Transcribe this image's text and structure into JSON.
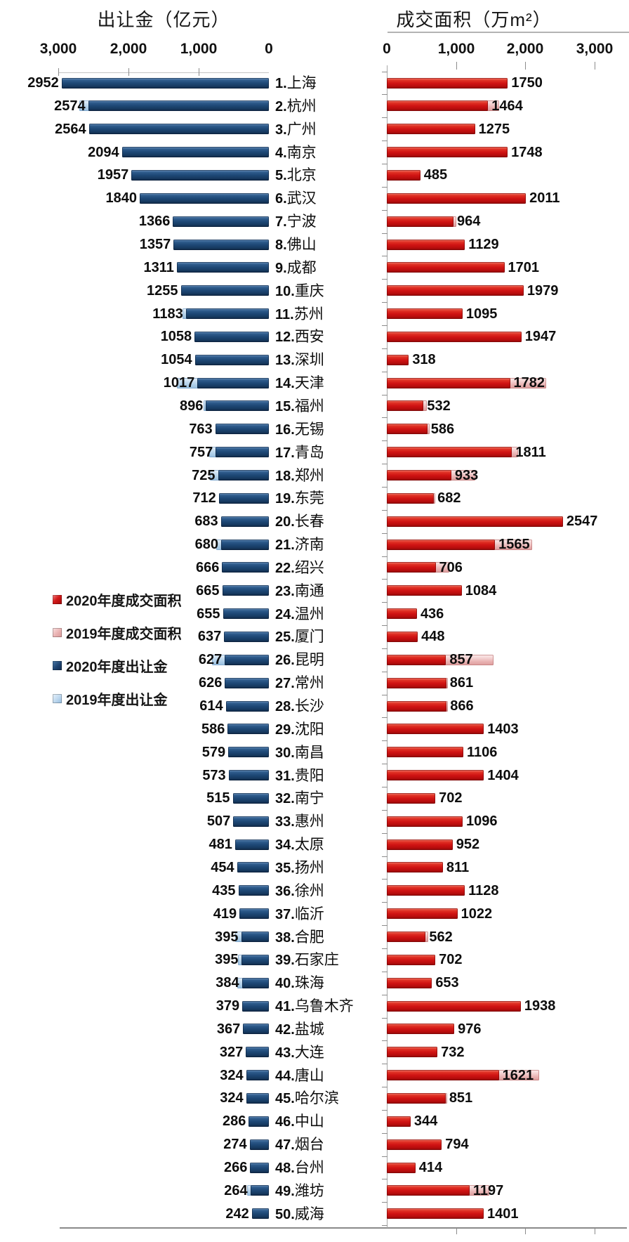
{
  "left_chart": {
    "title": "出让金（亿元）",
    "tick_labels": [
      "3,000",
      "2,000",
      "1,000",
      "0"
    ],
    "axis_reversed": true
  },
  "right_chart": {
    "title": "成交面积（万m²）",
    "tick_labels": [
      "0",
      "1,000",
      "2,000",
      "3,000"
    ]
  },
  "legend": [
    {
      "label": "2020年度成交面积",
      "color": "#d11414"
    },
    {
      "label": "2019年度成交面积",
      "color": "#e9b3b3"
    },
    {
      "label": "2020年度出让金",
      "color": "#1e4876"
    },
    {
      "label": "2019年度出让金",
      "color": "#bdd7ee"
    }
  ],
  "chart_data": {
    "type": "bar",
    "orientation": "horizontal-diverging",
    "categories": [
      "1.上海",
      "2.杭州",
      "3.广州",
      "4.南京",
      "5.北京",
      "6.武汉",
      "7.宁波",
      "8.佛山",
      "9.成都",
      "10.重庆",
      "11.苏州",
      "12.西安",
      "13.深圳",
      "14.天津",
      "15.福州",
      "16.无锡",
      "17.青岛",
      "18.郑州",
      "19.东莞",
      "20.长春",
      "21.济南",
      "22.绍兴",
      "23.南通",
      "24.温州",
      "25.厦门",
      "26.昆明",
      "27.常州",
      "28.长沙",
      "29.沈阳",
      "30.南昌",
      "31.贵阳",
      "32.南宁",
      "33.惠州",
      "34.太原",
      "35.扬州",
      "36.徐州",
      "37.临沂",
      "38.合肥",
      "39.石家庄",
      "40.珠海",
      "41.乌鲁木齐",
      "42.盐城",
      "43.大连",
      "44.唐山",
      "45.哈尔滨",
      "46.中山",
      "47.烟台",
      "48.台州",
      "49.潍坊",
      "50.威海"
    ],
    "left_axis": {
      "title": "出让金（亿元）",
      "range": [
        0,
        3000
      ],
      "ticks": [
        3000,
        2000,
        1000,
        0
      ],
      "reversed": true
    },
    "right_axis": {
      "title": "成交面积（万m²）",
      "range": [
        0,
        3000
      ],
      "ticks": [
        0,
        1000,
        2000,
        3000
      ]
    },
    "series": [
      {
        "name": "2020年度出让金",
        "side": "left",
        "color": "#1e4876",
        "labeled": true,
        "values": [
          2952,
          2574,
          2564,
          2094,
          1957,
          1840,
          1366,
          1357,
          1311,
          1255,
          1183,
          1058,
          1054,
          1017,
          896,
          763,
          757,
          725,
          712,
          683,
          680,
          666,
          665,
          655,
          637,
          627,
          626,
          614,
          586,
          579,
          573,
          515,
          507,
          481,
          454,
          435,
          419,
          395,
          395,
          384,
          379,
          367,
          327,
          324,
          324,
          286,
          274,
          266,
          264,
          242
        ]
      },
      {
        "name": "2019年度出让金",
        "side": "left",
        "color": "#bdd7ee",
        "labeled": false,
        "estimated": true,
        "values": [
          null,
          2700,
          null,
          null,
          null,
          null,
          null,
          null,
          null,
          null,
          1230,
          null,
          null,
          1310,
          930,
          null,
          850,
          840,
          null,
          null,
          750,
          null,
          null,
          null,
          null,
          810,
          null,
          null,
          null,
          null,
          null,
          null,
          null,
          null,
          null,
          null,
          null,
          485,
          445,
          455,
          null,
          null,
          null,
          null,
          null,
          null,
          null,
          null,
          310,
          null
        ]
      },
      {
        "name": "2020年度成交面积",
        "side": "right",
        "color": "#d11414",
        "labeled": true,
        "values": [
          1750,
          1464,
          1275,
          1748,
          485,
          2011,
          964,
          1129,
          1701,
          1979,
          1095,
          1947,
          318,
          1782,
          532,
          586,
          1811,
          933,
          682,
          2547,
          1565,
          706,
          1084,
          436,
          448,
          857,
          861,
          866,
          1403,
          1106,
          1404,
          702,
          1096,
          952,
          811,
          1128,
          1022,
          562,
          702,
          653,
          1938,
          976,
          732,
          1621,
          851,
          344,
          794,
          414,
          1197,
          1401
        ]
      },
      {
        "name": "2019年度成交面积",
        "side": "right",
        "color": "#e9b3b3",
        "labeled": false,
        "estimated": true,
        "values": [
          null,
          1620,
          null,
          null,
          null,
          null,
          1010,
          null,
          null,
          null,
          null,
          null,
          null,
          2300,
          580,
          620,
          1900,
          1280,
          700,
          null,
          2100,
          900,
          null,
          null,
          null,
          1540,
          880,
          880,
          null,
          null,
          null,
          null,
          null,
          null,
          null,
          null,
          null,
          600,
          null,
          null,
          null,
          null,
          null,
          2200,
          870,
          null,
          null,
          null,
          1480,
          null
        ]
      }
    ]
  }
}
